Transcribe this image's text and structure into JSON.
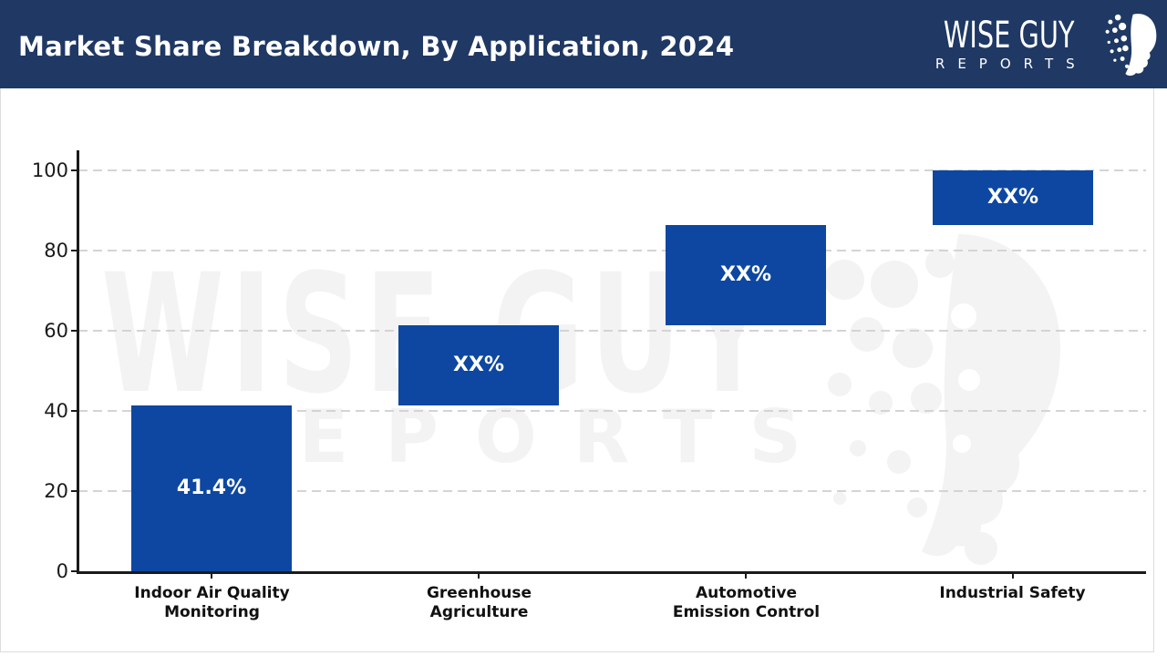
{
  "header": {
    "title": "Market Share Breakdown, By Application, 2024",
    "logo": {
      "line1": "WISE GUY",
      "line2": "REPORTS"
    }
  },
  "watermark": {
    "line1": "WISE GUY",
    "line2": "REPORTS"
  },
  "colors": {
    "header_bg": "#1f3864",
    "bar": "#0d47a1",
    "bar_label": "#ffffff",
    "axis": "#1a1a1a",
    "grid": "#d4d4d4",
    "watermark": "#f3f3f4",
    "category_label": "#111111",
    "logo": "#ffffff"
  },
  "chart_data": {
    "type": "bar",
    "subtype": "waterfall",
    "title": "Market Share Breakdown, By Application, 2024",
    "unit": "%",
    "categories": [
      "Indoor Air Quality Monitoring",
      "Greenhouse Agriculture",
      "Automotive Emission Control",
      "Industrial Safety"
    ],
    "ylim": [
      0,
      105
    ],
    "yticks": [
      0,
      20,
      40,
      60,
      80,
      100
    ],
    "grid": "horizontal-dashed",
    "legend": "none",
    "bars": [
      {
        "category_lines": [
          "Indoor Air Quality",
          "Monitoring"
        ],
        "start": 0,
        "end": 41.4,
        "label": "41.4%",
        "value_estimate": 41.4
      },
      {
        "category_lines": [
          "Greenhouse",
          "Agriculture"
        ],
        "start": 41.4,
        "end": 61.4,
        "label": "XX%",
        "value_estimate": 20.0
      },
      {
        "category_lines": [
          "Automotive",
          "Emission Control"
        ],
        "start": 61.4,
        "end": 86.4,
        "label": "XX%",
        "value_estimate": 25.0
      },
      {
        "category_lines": [
          "Industrial Safety"
        ],
        "start": 86.4,
        "end": 100,
        "label": "XX%",
        "value_estimate": 13.6
      }
    ]
  }
}
